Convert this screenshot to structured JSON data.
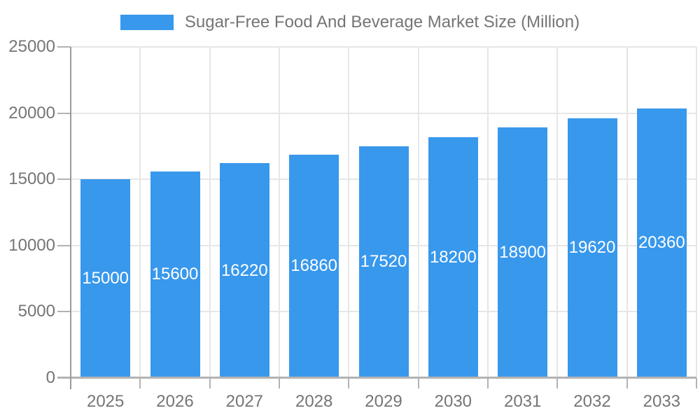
{
  "legend": {
    "label": "Sugar-Free Food And Beverage Market Size (Million)",
    "swatch_color": "#3898EC"
  },
  "chart_data": {
    "type": "bar",
    "title": "Sugar-Free Food And Beverage Market Size (Million)",
    "categories": [
      "2025",
      "2026",
      "2027",
      "2028",
      "2029",
      "2030",
      "2031",
      "2032",
      "2033"
    ],
    "values": [
      15000,
      15600,
      16220,
      16860,
      17520,
      18200,
      18900,
      19620,
      20360
    ],
    "xlabel": "",
    "ylabel": "",
    "ylim": [
      0,
      25000
    ],
    "yticks": [
      0,
      5000,
      10000,
      15000,
      20000,
      25000
    ],
    "grid": true,
    "legend_position": "top",
    "bar_color": "#3898EC",
    "bar_label_color": "#ffffff",
    "axis_text_color": "#757575",
    "gridline_color": "#e6e6e6",
    "axis_line_color": "#9a9a9a",
    "baseline_color": "#b3b3b3"
  }
}
